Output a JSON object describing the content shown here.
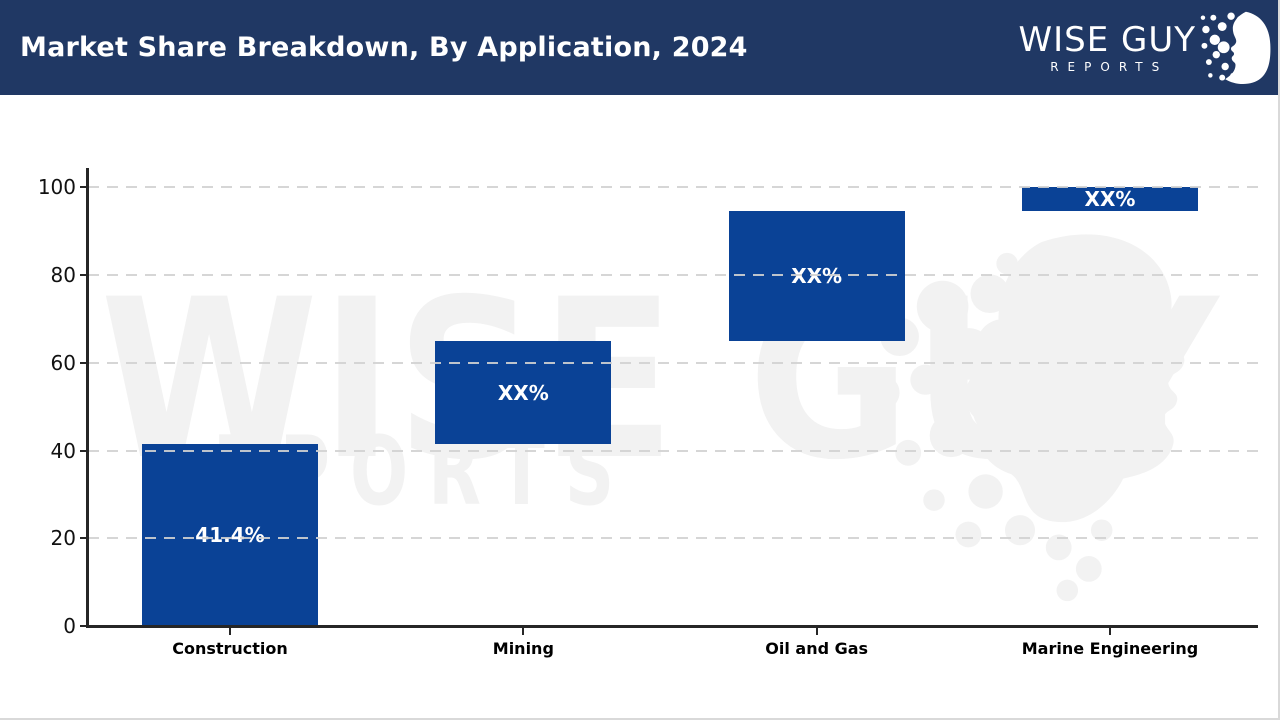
{
  "header": {
    "title": "Market Share Breakdown, By Application, 2024",
    "logo": {
      "wordmark": "WISE GUY",
      "subtitle": "REPORTS"
    }
  },
  "watermark": {
    "line1": "WISE GUY",
    "line2": "REPORTS"
  },
  "colors": {
    "header_bg": "#203864",
    "bar": "#0a4296",
    "gridline": "#d2d2d2",
    "axis": "#262626",
    "watermark": "#f2f2f2",
    "bar_label": "#ffffff"
  },
  "chart_data": {
    "type": "bar",
    "subtype": "floating-waterfall",
    "title": "Market Share Breakdown, By Application, 2024",
    "categories": [
      "Construction",
      "Mining",
      "Oil and Gas",
      "Marine Engineering"
    ],
    "segments": [
      {
        "category": "Construction",
        "start": 0,
        "end": 41.4,
        "label": "41.4%"
      },
      {
        "category": "Mining",
        "start": 41.4,
        "end": 65,
        "label": "XX%"
      },
      {
        "category": "Oil and Gas",
        "start": 65,
        "end": 94.6,
        "label": "XX%"
      },
      {
        "category": "Marine Engineering",
        "start": 94.6,
        "end": 100,
        "label": "XX%"
      }
    ],
    "xlabel": "",
    "ylabel": "",
    "yticks": [
      0,
      20,
      40,
      60,
      80,
      100
    ],
    "ylim": [
      0,
      104
    ],
    "grid": "dashed-horizontal",
    "legend": "none"
  }
}
